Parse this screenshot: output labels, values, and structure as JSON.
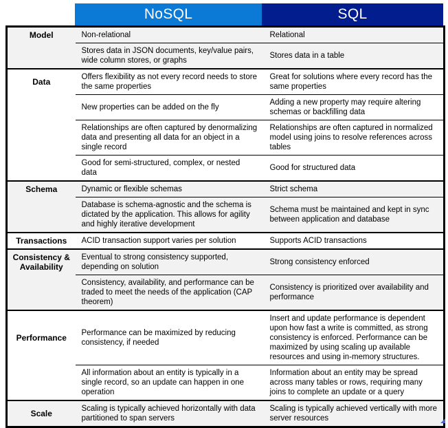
{
  "header": {
    "nosql_label": "NoSQL",
    "sql_label": "SQL",
    "nosql_bg": "#0b7ad6",
    "sql_bg": "#021e8e",
    "text_color": "#ffffff"
  },
  "table": {
    "stripe_color": "#f2f2f2",
    "groups": [
      {
        "label": "Model",
        "rows": [
          {
            "nosql": "Non-relational",
            "sql": "Relational"
          },
          {
            "nosql": "Stores data in JSON documents, key/value pairs, wide column stores, or graphs",
            "sql": "Stores data in a table"
          }
        ]
      },
      {
        "label": "Data",
        "rows": [
          {
            "nosql": "Offers flexibility as not every record needs to store the same properties",
            "sql": "Great for solutions where every record has the same properties"
          },
          {
            "nosql": "New properties can be added on the fly",
            "sql": "Adding a new property may require altering schemas or backfilling data"
          },
          {
            "nosql": "Relationships are often captured by denormalizing data and presenting all data for an object in a single record",
            "sql": "Relationships are often captured in normalized model using joins to resolve references across tables"
          },
          {
            "nosql": "Good for semi-structured, complex, or nested data",
            "sql": "Good for structured data"
          }
        ]
      },
      {
        "label": "Schema",
        "rows": [
          {
            "nosql": "Dynamic or flexible schemas",
            "sql": "Strict schema"
          },
          {
            "nosql": "Database is schema-agnostic and the schema is dictated by the application. This allows for agility and highly iterative development",
            "sql": "Schema must be maintained and kept in sync between application and database"
          }
        ]
      },
      {
        "label": "Transactions",
        "rows": [
          {
            "nosql": "ACID transaction support varies per solution",
            "sql": "Supports ACID transactions"
          }
        ]
      },
      {
        "label": "Consistency & Availability",
        "rows": [
          {
            "nosql": "Eventual to strong consistency supported, depending on solution",
            "sql": "Strong consistency enforced"
          },
          {
            "nosql": "Consistency, availability, and performance can be traded to meet the needs of the application (CAP theorem)",
            "sql": "Consistency is prioritized over availability and performance"
          }
        ]
      },
      {
        "label": "Performance",
        "rows": [
          {
            "nosql": "Performance can be maximized by reducing consistency, if needed",
            "sql": "Insert and update performance is dependent upon how fast a write is committed, as strong consistency is enforced. Performance can be maximized by using scaling up available resources and using in-memory structures."
          },
          {
            "nosql": "All information about an entity is typically in a single record, so an update can happen in one operation",
            "sql": "Information about an entity may be spread across many tables or rows, requiring many joins to complete an update or a query"
          }
        ]
      },
      {
        "label": "Scale",
        "rows": [
          {
            "nosql": "Scaling is typically achieved horizontally with data partitioned to span servers",
            "sql": "Scaling is typically achieved vertically with more server resources"
          }
        ]
      }
    ]
  }
}
